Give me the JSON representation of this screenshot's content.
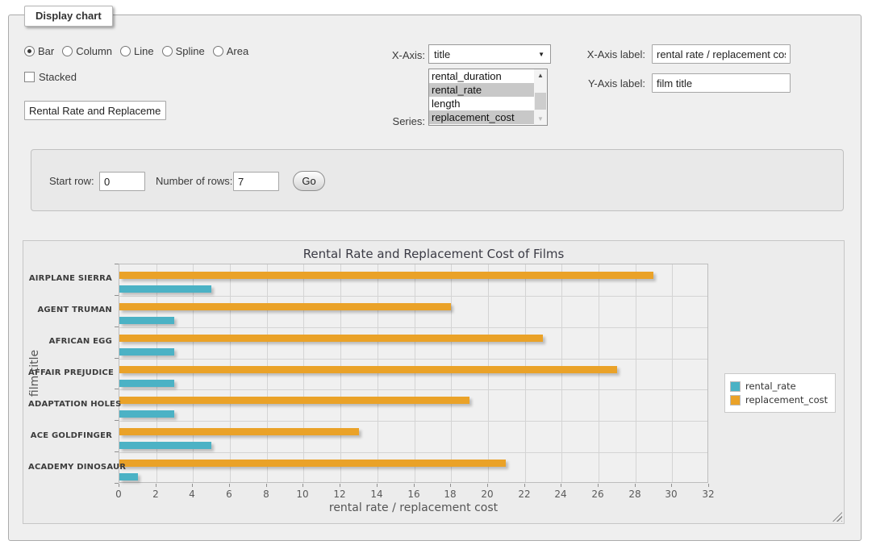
{
  "panel": {
    "legend": "Display chart"
  },
  "controls": {
    "chart_types": {
      "options": [
        {
          "label": "Bar",
          "selected": true
        },
        {
          "label": "Column",
          "selected": false
        },
        {
          "label": "Line",
          "selected": false
        },
        {
          "label": "Spline",
          "selected": false
        },
        {
          "label": "Area",
          "selected": false
        }
      ]
    },
    "stacked": {
      "label": "Stacked",
      "checked": false
    },
    "chart_title_input": {
      "value": "Rental Rate and Replacement Cost of Films"
    },
    "x_axis_select": {
      "label": "X-Axis:",
      "value": "title"
    },
    "series_select": {
      "label": "Series:",
      "options": [
        {
          "label": "rental_duration",
          "selected": false
        },
        {
          "label": "rental_rate",
          "selected": true
        },
        {
          "label": "length",
          "selected": false
        },
        {
          "label": "replacement_cost",
          "selected": true
        }
      ]
    },
    "x_axis_label_input": {
      "label": "X-Axis label:",
      "value": "rental rate / replacement cost"
    },
    "y_axis_label_input": {
      "label": "Y-Axis label:",
      "value": "film title"
    }
  },
  "rows_form": {
    "start_row_label": "Start row:",
    "start_row_value": "0",
    "number_of_rows_label": "Number of rows:",
    "number_of_rows_value": "7",
    "go_button": "Go"
  },
  "icons": {
    "dropdown_arrow": "▼",
    "scrollbar_up": "▲",
    "scrollbar_down": "▼"
  },
  "colors": {
    "rental_rate": "#4bb2c5",
    "replacement_cost": "#eaa228",
    "grid_background": "#f0f0f0",
    "gridline": "#d4d4d4",
    "selected_option_bg": "#c8c8c8",
    "panel_background": "#efefef"
  },
  "chart_data": {
    "type": "bar",
    "orientation": "horizontal",
    "title": "Rental Rate and Replacement Cost of Films",
    "categories": [
      "AIRPLANE SIERRA",
      "AGENT TRUMAN",
      "AFRICAN EGG",
      "AFFAIR PREJUDICE",
      "ADAPTATION HOLES",
      "ACE GOLDFINGER",
      "ACADEMY DINOSAUR"
    ],
    "series": [
      {
        "name": "rental_rate",
        "color": "#4bb2c5",
        "values": [
          4.99,
          2.99,
          2.99,
          2.99,
          2.99,
          4.99,
          0.99
        ]
      },
      {
        "name": "replacement_cost",
        "color": "#eaa228",
        "values": [
          28.99,
          17.99,
          22.99,
          26.99,
          18.99,
          12.99,
          20.99
        ]
      }
    ],
    "xlabel": "rental rate / replacement cost",
    "ylabel": "film title",
    "xlim": [
      0,
      32
    ],
    "xtick_step": 2,
    "grid": true,
    "legend_position": "right"
  }
}
